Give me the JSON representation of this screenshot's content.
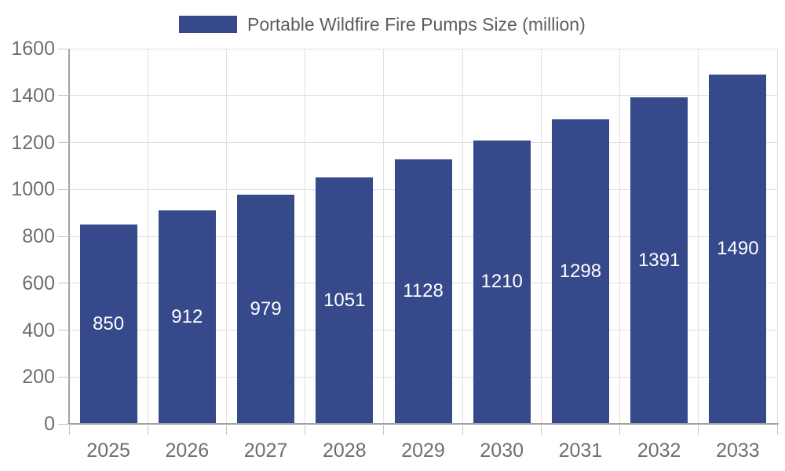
{
  "chart_data": {
    "type": "bar",
    "title": "Portable Wildfire Fire Pumps Size (million)",
    "categories": [
      "2025",
      "2026",
      "2027",
      "2028",
      "2029",
      "2030",
      "2031",
      "2032",
      "2033"
    ],
    "series": [
      {
        "name": "Portable Wildfire Fire Pumps Size (million)",
        "values": [
          850,
          912,
          979,
          1051,
          1128,
          1210,
          1298,
          1391,
          1490
        ]
      }
    ],
    "xlabel": "",
    "ylabel": "",
    "ylim": [
      0,
      1600
    ],
    "ytick_step": 200,
    "y_ticks": [
      "0",
      "200",
      "400",
      "600",
      "800",
      "1000",
      "1200",
      "1400",
      "1600"
    ],
    "grid": true,
    "legend_position": "top",
    "value_labels": "inside-center",
    "colors": {
      "bar": "#364A8B",
      "value_label": "#FFFFFF",
      "axis_label": "#6E6E6E",
      "legend_text": "#5E5E5E",
      "gridline": "#E0E0E0",
      "axis_line": "#A3A3A3",
      "tick": "#C6C6C6",
      "background": "#FFFFFF"
    }
  }
}
